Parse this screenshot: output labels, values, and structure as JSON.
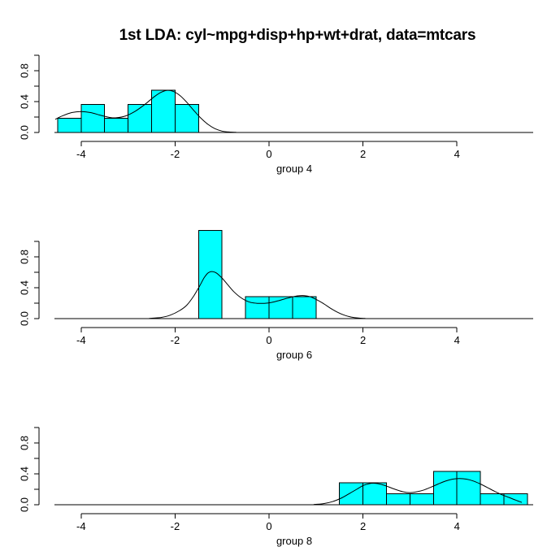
{
  "title": "1st LDA: cyl~mpg+disp+hp+wt+drat, data=mtcars",
  "colors": {
    "background": "#ffffff",
    "bar_fill": "#00ffff",
    "line": "#000000",
    "text": "#000000"
  },
  "axes": {
    "x_tick_values": [
      -4,
      -2,
      0,
      2,
      4
    ],
    "x_tick_labels": [
      "-4",
      "-2",
      "0",
      "2",
      "4"
    ],
    "x_range_shown": [
      -4.6,
      5.6
    ],
    "y_tick_values": [
      0,
      0.2,
      0.4,
      0.6,
      0.8,
      1.0
    ],
    "y_labeled_ticks": [
      {
        "value": 0.0,
        "label": "0.0"
      },
      {
        "value": 0.4,
        "label": "0.4"
      },
      {
        "value": 0.8,
        "label": "0.8"
      }
    ],
    "grid": false
  },
  "chart_data": [
    {
      "type": "histogram",
      "group_label": "group 4",
      "bin_width": 0.5,
      "bin_edges": [
        -4.5,
        -4.0,
        -3.5,
        -3.0,
        -2.5,
        -2.0,
        -1.5
      ],
      "densities": [
        0.182,
        0.364,
        0.182,
        0.364,
        0.545,
        0.364
      ],
      "density_curve": [
        [
          -4.55,
          0.17
        ],
        [
          -4.4,
          0.215
        ],
        [
          -4.2,
          0.258
        ],
        [
          -4.0,
          0.272
        ],
        [
          -3.8,
          0.258
        ],
        [
          -3.6,
          0.225
        ],
        [
          -3.4,
          0.196
        ],
        [
          -3.25,
          0.19
        ],
        [
          -3.05,
          0.215
        ],
        [
          -2.85,
          0.275
        ],
        [
          -2.65,
          0.36
        ],
        [
          -2.45,
          0.46
        ],
        [
          -2.3,
          0.52
        ],
        [
          -2.18,
          0.545
        ],
        [
          -2.05,
          0.535
        ],
        [
          -1.9,
          0.48
        ],
        [
          -1.75,
          0.39
        ],
        [
          -1.6,
          0.285
        ],
        [
          -1.45,
          0.185
        ],
        [
          -1.3,
          0.105
        ],
        [
          -1.15,
          0.05
        ],
        [
          -1.0,
          0.018
        ],
        [
          -0.85,
          0.006
        ],
        [
          -0.7,
          0.002
        ]
      ]
    },
    {
      "type": "histogram",
      "group_label": "group 6",
      "bin_width": 0.5,
      "bin_edges": [
        -1.5,
        -1.0,
        -0.5,
        0.0,
        0.5,
        1.0
      ],
      "densities": [
        1.143,
        0,
        0.286,
        0.286,
        0.286
      ],
      "density_curve": [
        [
          -2.55,
          0.003
        ],
        [
          -2.3,
          0.015
        ],
        [
          -2.1,
          0.045
        ],
        [
          -1.9,
          0.105
        ],
        [
          -1.75,
          0.175
        ],
        [
          -1.6,
          0.295
        ],
        [
          -1.48,
          0.42
        ],
        [
          -1.38,
          0.53
        ],
        [
          -1.3,
          0.59
        ],
        [
          -1.22,
          0.61
        ],
        [
          -1.12,
          0.59
        ],
        [
          -1.0,
          0.525
        ],
        [
          -0.88,
          0.44
        ],
        [
          -0.75,
          0.35
        ],
        [
          -0.62,
          0.28
        ],
        [
          -0.5,
          0.235
        ],
        [
          -0.38,
          0.208
        ],
        [
          -0.25,
          0.198
        ],
        [
          -0.1,
          0.198
        ],
        [
          0.05,
          0.21
        ],
        [
          0.2,
          0.232
        ],
        [
          0.35,
          0.258
        ],
        [
          0.5,
          0.282
        ],
        [
          0.63,
          0.296
        ],
        [
          0.75,
          0.298
        ],
        [
          0.88,
          0.283
        ],
        [
          1.0,
          0.25
        ],
        [
          1.15,
          0.198
        ],
        [
          1.3,
          0.138
        ],
        [
          1.45,
          0.085
        ],
        [
          1.6,
          0.045
        ],
        [
          1.75,
          0.02
        ],
        [
          1.9,
          0.007
        ],
        [
          2.05,
          0.002
        ]
      ]
    },
    {
      "type": "histogram",
      "group_label": "group 8",
      "bin_width": 0.5,
      "bin_edges": [
        1.5,
        2.0,
        2.5,
        3.0,
        3.5,
        4.0,
        4.5,
        5.0,
        5.5
      ],
      "densities": [
        0.286,
        0.286,
        0.143,
        0.143,
        0.429,
        0.429,
        0.143,
        0.143
      ],
      "density_curve": [
        [
          0.95,
          0.003
        ],
        [
          1.15,
          0.013
        ],
        [
          1.35,
          0.04
        ],
        [
          1.55,
          0.09
        ],
        [
          1.72,
          0.148
        ],
        [
          1.88,
          0.205
        ],
        [
          2.0,
          0.248
        ],
        [
          2.12,
          0.272
        ],
        [
          2.25,
          0.278
        ],
        [
          2.4,
          0.262
        ],
        [
          2.55,
          0.23
        ],
        [
          2.7,
          0.196
        ],
        [
          2.85,
          0.168
        ],
        [
          3.0,
          0.157
        ],
        [
          3.15,
          0.168
        ],
        [
          3.3,
          0.192
        ],
        [
          3.45,
          0.228
        ],
        [
          3.6,
          0.268
        ],
        [
          3.75,
          0.305
        ],
        [
          3.9,
          0.33
        ],
        [
          4.05,
          0.34
        ],
        [
          4.2,
          0.332
        ],
        [
          4.35,
          0.307
        ],
        [
          4.5,
          0.268
        ],
        [
          4.65,
          0.222
        ],
        [
          4.8,
          0.175
        ],
        [
          4.95,
          0.132
        ],
        [
          5.1,
          0.096
        ],
        [
          5.25,
          0.06
        ],
        [
          5.38,
          0.03
        ]
      ]
    }
  ]
}
